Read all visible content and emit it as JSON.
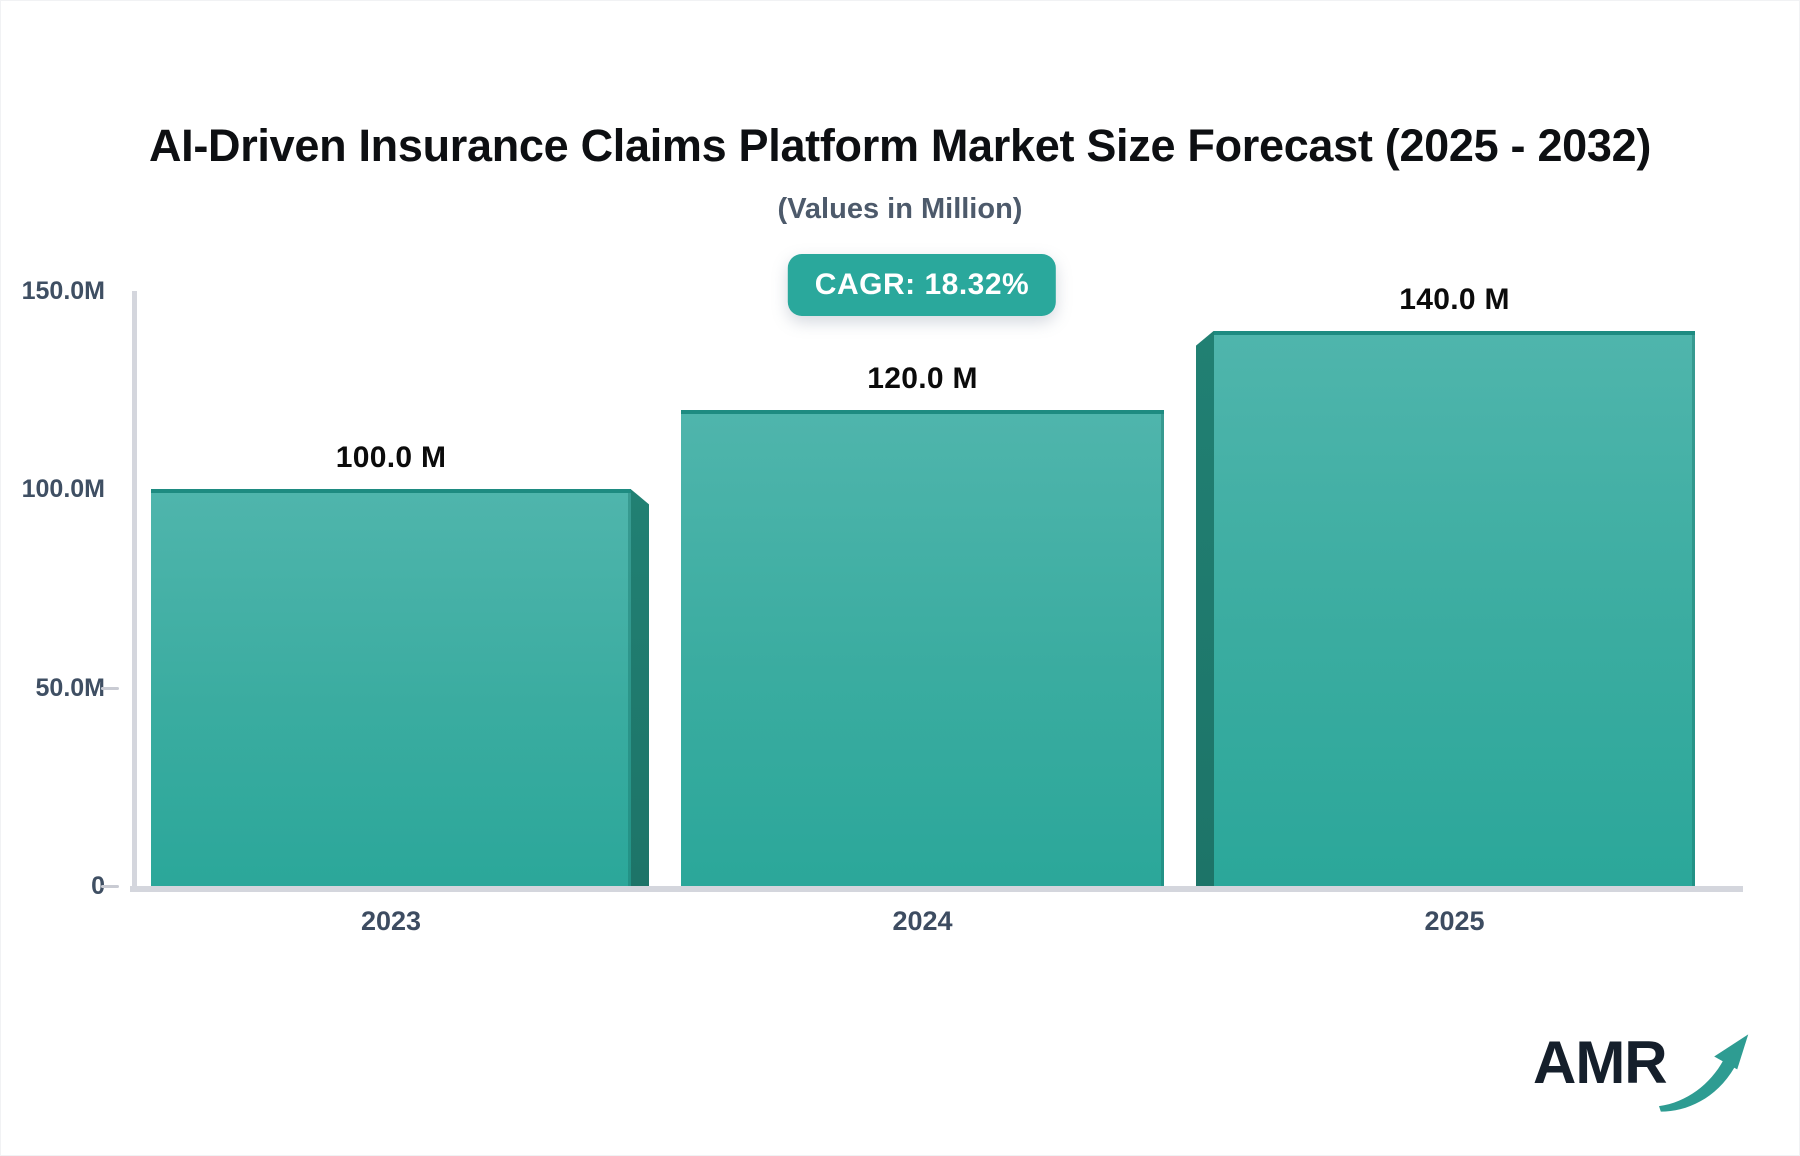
{
  "chart_data": {
    "type": "bar",
    "title": "AI-Driven Insurance Claims Platform Market Size Forecast (2025 - 2032)",
    "subtitle": "(Values in Million)",
    "cagr_badge": "CAGR: 18.32%",
    "categories": [
      "2023",
      "2024",
      "2025"
    ],
    "values": [
      100.0,
      120.0,
      140.0
    ],
    "value_labels": [
      "100.0 M",
      "120.0 M",
      "140.0 M"
    ],
    "unit": "Million",
    "ylim": [
      0,
      150
    ],
    "y_ticks": [
      {
        "label": "150.0M",
        "value": 150,
        "dash": false
      },
      {
        "label": "100.0M",
        "value": 100,
        "dash": false
      },
      {
        "label": "50.0M",
        "value": 50,
        "dash": true
      },
      {
        "label": "0",
        "value": 0,
        "dash": true
      }
    ],
    "grid": false,
    "legend": "none",
    "colors": {
      "bar_top": "#4fb5ac",
      "bar_bottom": "#2ba79a",
      "bar_top_border": "#1e8b81",
      "bar_side_3d": "#1f7e72",
      "badge_bg": "#2aa89c",
      "axis_line": "#d4d6dd",
      "tick_text": "#3f4f63",
      "value_text": "#0b0b0b"
    }
  },
  "logo": {
    "text": "AMR",
    "arrow_icon": "trend-up-arrow"
  }
}
